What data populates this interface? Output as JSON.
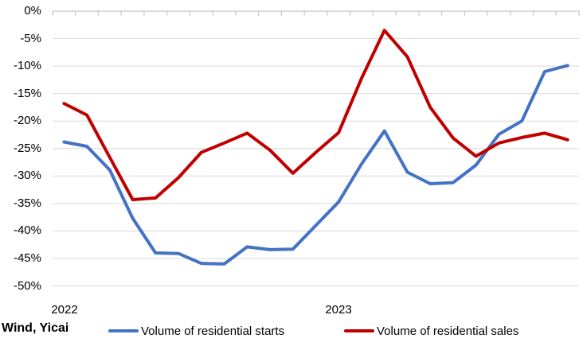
{
  "source": {
    "label": "Wind, Yicai"
  },
  "x_axis": {
    "year_labels": [
      {
        "text": "2022"
      },
      {
        "text": "2023"
      }
    ]
  },
  "y_axis": {
    "tick_labels": [
      "0%",
      "-5%",
      "-10%",
      "-15%",
      "-20%",
      "-25%",
      "-30%",
      "-35%",
      "-40%",
      "-45%",
      "-50%"
    ]
  },
  "legend": [
    {
      "label": "Volume of residential starts",
      "color": "#4472C4"
    },
    {
      "label": "Volume of residential sales",
      "color": "#C00000"
    }
  ],
  "colors": {
    "grid": "#D9D9D9",
    "axis": "#C6C6C6",
    "text": "#000000",
    "background": "#FFFFFF"
  },
  "chart_data": {
    "type": "line",
    "title": "",
    "xlabel": "",
    "ylabel": "",
    "ylim": [
      -50,
      0
    ],
    "ytick_step": 5,
    "grid": true,
    "legend_position": "bottom",
    "x_tick_marks": "top axis, at category boundaries",
    "categories": [
      "2022-01",
      "2022-02",
      "2022-03",
      "2022-04",
      "2022-05",
      "2022-06",
      "2022-07",
      "2022-08",
      "2022-09",
      "2022-10",
      "2022-11",
      "2022-12",
      "2023-01",
      "2023-02",
      "2023-03",
      "2023-04",
      "2023-05",
      "2023-06",
      "2023-07",
      "2023-08",
      "2023-09",
      "2023-10",
      "2023-11"
    ],
    "series": [
      {
        "name": "Volume of residential starts",
        "color": "#4472C4",
        "values": [
          -23.8,
          -24.6,
          -28.9,
          -37.7,
          -44.0,
          -44.1,
          -45.9,
          -46.0,
          -42.9,
          -43.4,
          -43.3,
          -39.0,
          -34.7,
          -27.8,
          -21.8,
          -29.3,
          -31.4,
          -31.2,
          -28.0,
          -22.4,
          -20.0,
          -11.0,
          -9.9
        ]
      },
      {
        "name": "Volume of residential sales",
        "color": "#C00000",
        "values": [
          -16.8,
          -18.9,
          -26.6,
          -34.3,
          -34.0,
          -30.3,
          -25.7,
          -24.0,
          -22.2,
          -25.3,
          -29.5,
          -25.7,
          -22.1,
          -12.2,
          -3.5,
          -8.3,
          -17.5,
          -23.1,
          -26.4,
          -24.0,
          -23.0,
          -22.2,
          -23.4
        ]
      }
    ]
  }
}
